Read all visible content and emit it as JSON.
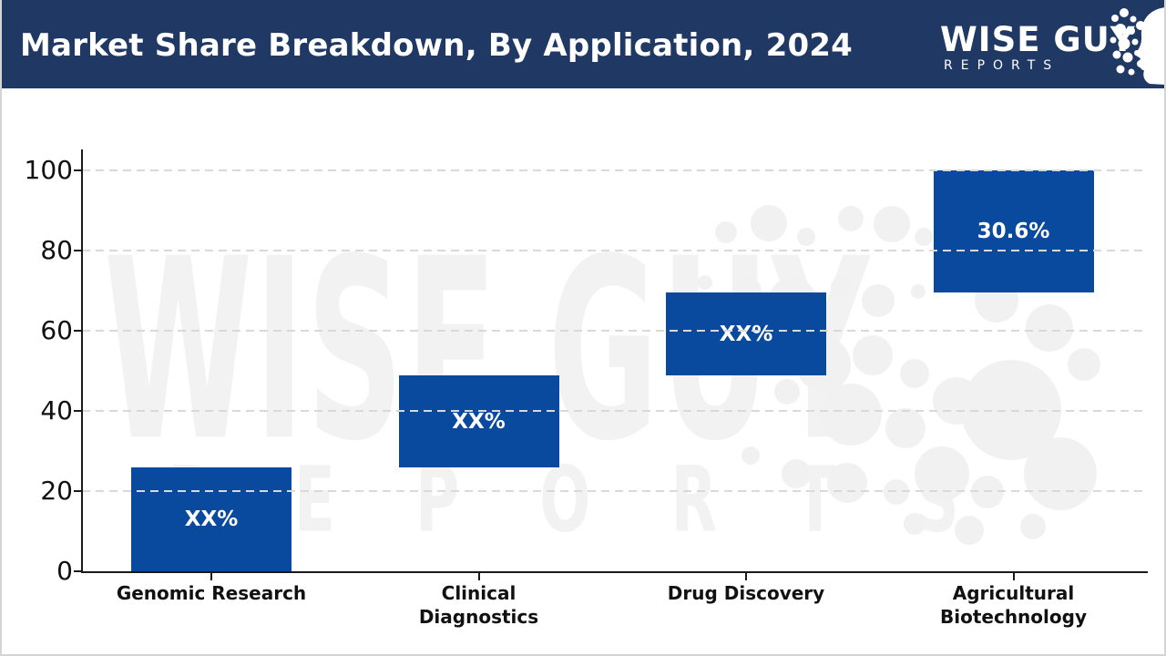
{
  "header": {
    "title": "Market Share Breakdown, By Application, 2024",
    "bg_color": "#1f3864",
    "logo": {
      "line1": "WISE GUY",
      "line2": "REPORTS"
    }
  },
  "watermark": {
    "line1": "WISE GUY",
    "line2": "REPORTS"
  },
  "chart_data": {
    "type": "bar",
    "subtype": "stacked-waterfall-floating-bars",
    "title": "Market Share Breakdown, By Application, 2024",
    "categories": [
      "Genomic Research",
      "Clinical Diagnostics",
      "Drug Discovery",
      "Agricultural Biotechnology"
    ],
    "category_lines": [
      [
        "Genomic Research"
      ],
      [
        "Clinical",
        "Diagnostics"
      ],
      [
        "Drug Discovery"
      ],
      [
        "Agricultural",
        "Biotechnology"
      ]
    ],
    "segments": [
      {
        "category": "Genomic Research",
        "start": 0,
        "end": 25.8,
        "label": "XX%"
      },
      {
        "category": "Clinical Diagnostics",
        "start": 25.8,
        "end": 48.8,
        "label": "XX%"
      },
      {
        "category": "Drug Discovery",
        "start": 48.8,
        "end": 69.4,
        "label": "XX%"
      },
      {
        "category": "Agricultural Biotechnology",
        "start": 69.4,
        "end": 100,
        "label": "30.6%",
        "value": 30.6
      }
    ],
    "yticks": [
      0,
      20,
      40,
      60,
      80,
      100
    ],
    "ylim": [
      0,
      100
    ],
    "xlabel": "",
    "ylabel": "",
    "grid": "horizontal-dashed",
    "legend": "none",
    "bar_color": "#0a4a9e",
    "bar_label_color": "#ffffff",
    "axis_color": "#1a1a1a"
  }
}
